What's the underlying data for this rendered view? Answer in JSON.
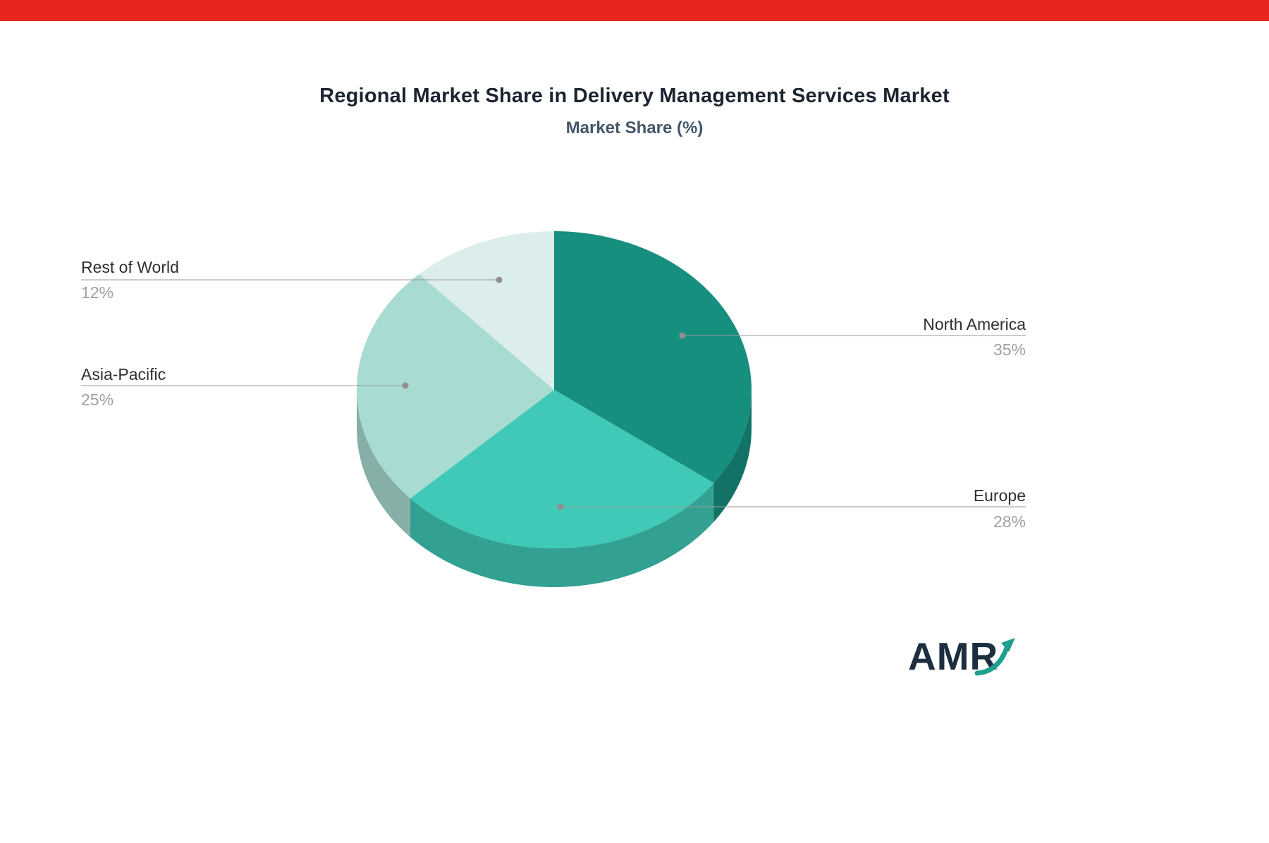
{
  "banner": {
    "color": "#e9261d"
  },
  "chart_data": {
    "type": "pie",
    "style": "3d",
    "title": "Regional Market Share in Delivery Management Services Market",
    "subtitle": "Market Share (%)",
    "unit": "%",
    "start_angle_deg": 0,
    "direction": "clockwise",
    "legend_position": "none",
    "slices": [
      {
        "label": "North America",
        "value": 35,
        "pct_label": "35%",
        "color": "#178f7f"
      },
      {
        "label": "Europe",
        "value": 28,
        "pct_label": "28%",
        "color": "#3fc9b6"
      },
      {
        "label": "Asia-Pacific",
        "value": 25,
        "pct_label": "25%",
        "color": "#a8dbd2"
      },
      {
        "label": "Rest of World",
        "value": 12,
        "pct_label": "12%",
        "color": "#dceeeb"
      }
    ]
  },
  "logo": {
    "text": "AMR",
    "arrow_color": "#1f9f8e"
  }
}
